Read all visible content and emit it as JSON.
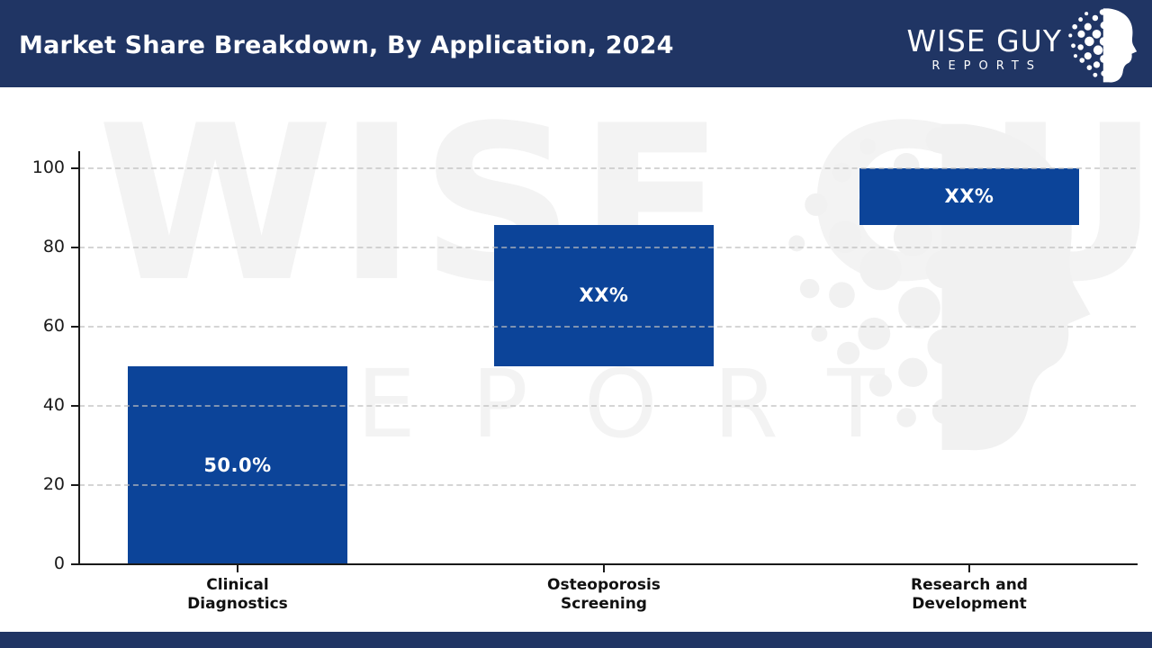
{
  "header": {
    "title": "Market Share Breakdown, By Application, 2024",
    "logo": {
      "name": "WISE GUY",
      "sub": "REPORTS"
    }
  },
  "watermark": {
    "name": "WISE GU",
    "sub": "REPORTS"
  },
  "chart_data": {
    "type": "bar",
    "variant": "waterfall-stacked-segments",
    "title": "Market Share Breakdown, By Application, 2024",
    "unit": "%",
    "categories": [
      "Clinical Diagnostics",
      "Osteoporosis Screening",
      "Research and Development"
    ],
    "category_lines": [
      [
        "Clinical",
        "Diagnostics"
      ],
      [
        "Osteoporosis",
        "Screening"
      ],
      [
        "Research and",
        "Development"
      ]
    ],
    "segments": [
      {
        "category": "Clinical Diagnostics",
        "start": 0,
        "end": 50,
        "value": 50.0,
        "label": "50.0%"
      },
      {
        "category": "Osteoporosis Screening",
        "start": 50,
        "end": 85.7,
        "value": 35.7,
        "label": "XX%"
      },
      {
        "category": "Research and Development",
        "start": 85.7,
        "end": 100,
        "value": 14.3,
        "label": "XX%"
      }
    ],
    "y_ticks": [
      100,
      80,
      60,
      40,
      20,
      0
    ],
    "ylim": [
      0,
      105
    ],
    "xlabel": "",
    "ylabel": "",
    "grid": {
      "axis": "y",
      "style": "dashed"
    },
    "legend": "none",
    "bar_color": "#0c4499",
    "bar_label_color": "#ffffff",
    "axis_color": "#1a1a1a",
    "grid_color": "#d8d8d8"
  },
  "colors": {
    "header_bg": "#203564",
    "footer_bg": "#203564",
    "watermark": "#f3f3f3"
  }
}
